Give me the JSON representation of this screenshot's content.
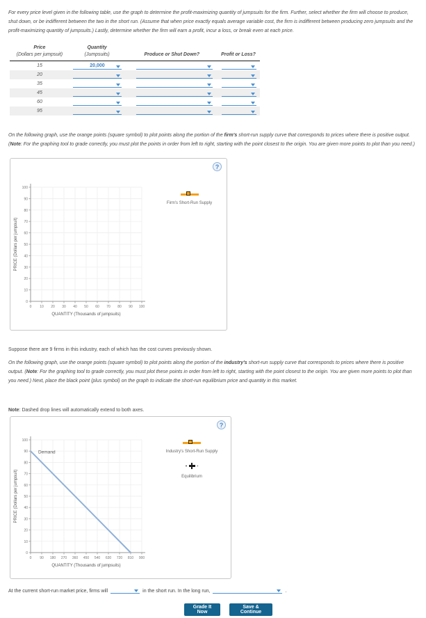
{
  "page": {
    "intro": "For every price level given in the following table, use the graph to determine the profit-maximizing quantity of jumpsuits for the firm. Further, select whether the firm will choose to produce, shut down, or be indifferent between the two in the short run. (Assume that when price exactly equals average variable cost, the firm is indifferent between producing zero jumpsuits and the profit-maximizing quantity of jumpsuits.) Lastly, determine whether the firm will earn a profit, incur a loss, or break even at each price.",
    "firm_para": {
      "t1": "On the following graph, use the orange points (square symbol) to plot points along the portion of the ",
      "b1": "firm's",
      "t2": " short-run supply curve that corresponds to prices where there is positive output. (",
      "b2": "Note",
      "t3": ": For the graphing tool to grade correctly, you must plot the points in order from left to right, starting with the point closest to the origin. You are given more points to plot than you need.)"
    },
    "nine_firms": "Suppose there are 9 firms in this industry, each of which has the cost curves previously shown.",
    "industry_para": {
      "t1": "On the following graph, use the orange points (square symbol) to plot points along the portion of the ",
      "b1": "industry's",
      "t2": " short-run supply curve that corresponds to prices where there is positive output. (",
      "b2": "Note",
      "t3": ": For the graphing tool to grade correctly, you must plot these points in order from left to right, starting with the point closest to the origin. You are given more points to plot than you need.) Next, place the black point (plus symbol) on the graph to indicate the short-run equilibrium price and quantity in this market."
    },
    "note_line": {
      "b": "Note",
      "t": ": Dashed drop lines will automatically extend to both axes."
    },
    "closing": {
      "t1": "At the current short-run market price, firms will",
      "t2": "in the short run. In the long run,",
      "t3": "."
    },
    "help_icon": "?",
    "buttons": {
      "grade": "Grade It Now",
      "save": "Save & Continue"
    }
  },
  "table": {
    "headers": {
      "price_title": "Price",
      "price_sub": "(Dollars per jumpsuit)",
      "quantity_title": "Quantity",
      "quantity_sub": "(Jumpsuits)",
      "produce": "Produce or Shut Down?",
      "profit": "Profit or Loss?"
    },
    "rows": [
      {
        "price": "15",
        "quantity": "20,000",
        "produce": "",
        "profit": ""
      },
      {
        "price": "20",
        "quantity": "",
        "produce": "",
        "profit": ""
      },
      {
        "price": "35",
        "quantity": "",
        "produce": "",
        "profit": ""
      },
      {
        "price": "45",
        "quantity": "",
        "produce": "",
        "profit": ""
      },
      {
        "price": "60",
        "quantity": "",
        "produce": "",
        "profit": ""
      },
      {
        "price": "95",
        "quantity": "",
        "produce": "",
        "profit": ""
      }
    ]
  },
  "chart_data": [
    {
      "type": "scatter",
      "title": "",
      "xlabel": "QUANTITY (Thousands of jumpsuits)",
      "ylabel": "PRICE (Dollars per jumpsuit)",
      "xlim": [
        0,
        100
      ],
      "ylim": [
        0,
        100
      ],
      "xticks": [
        0,
        10,
        20,
        30,
        40,
        50,
        60,
        70,
        80,
        90,
        100
      ],
      "yticks": [
        0,
        10,
        20,
        30,
        40,
        50,
        60,
        70,
        80,
        90,
        100
      ],
      "grid": true,
      "series": [],
      "legend": [
        {
          "label": "Firm's Short-Run Supply",
          "symbol": "orange-square-point"
        }
      ]
    },
    {
      "type": "line",
      "title": "",
      "xlabel": "QUANTITY (Thousands of jumpsuits)",
      "ylabel": "PRICE (Dollars per jumpsuit)",
      "xlim": [
        0,
        900
      ],
      "ylim": [
        0,
        100
      ],
      "xticks": [
        0,
        90,
        180,
        270,
        360,
        450,
        540,
        630,
        720,
        810,
        900
      ],
      "yticks": [
        0,
        10,
        20,
        30,
        40,
        50,
        60,
        70,
        80,
        90,
        100
      ],
      "grid": true,
      "series": [
        {
          "name": "Demand",
          "color": "#8fb0d9",
          "points": [
            [
              0,
              90
            ],
            [
              810,
              0
            ]
          ],
          "label_at": [
            62,
            88
          ]
        }
      ],
      "legend": [
        {
          "label": "Industry's Short-Run Supply",
          "symbol": "orange-square-point"
        },
        {
          "label": "Equilibrium",
          "symbol": "black-plus-point"
        }
      ]
    }
  ],
  "colors": {
    "dropdown_accent": "#4a90d2",
    "selected_value": "#3d7fc1",
    "supply_orange": "#f5a018",
    "demand_blue": "#8fb0d9",
    "button_blue": "#14648f",
    "row_stripe": "#efefef"
  }
}
